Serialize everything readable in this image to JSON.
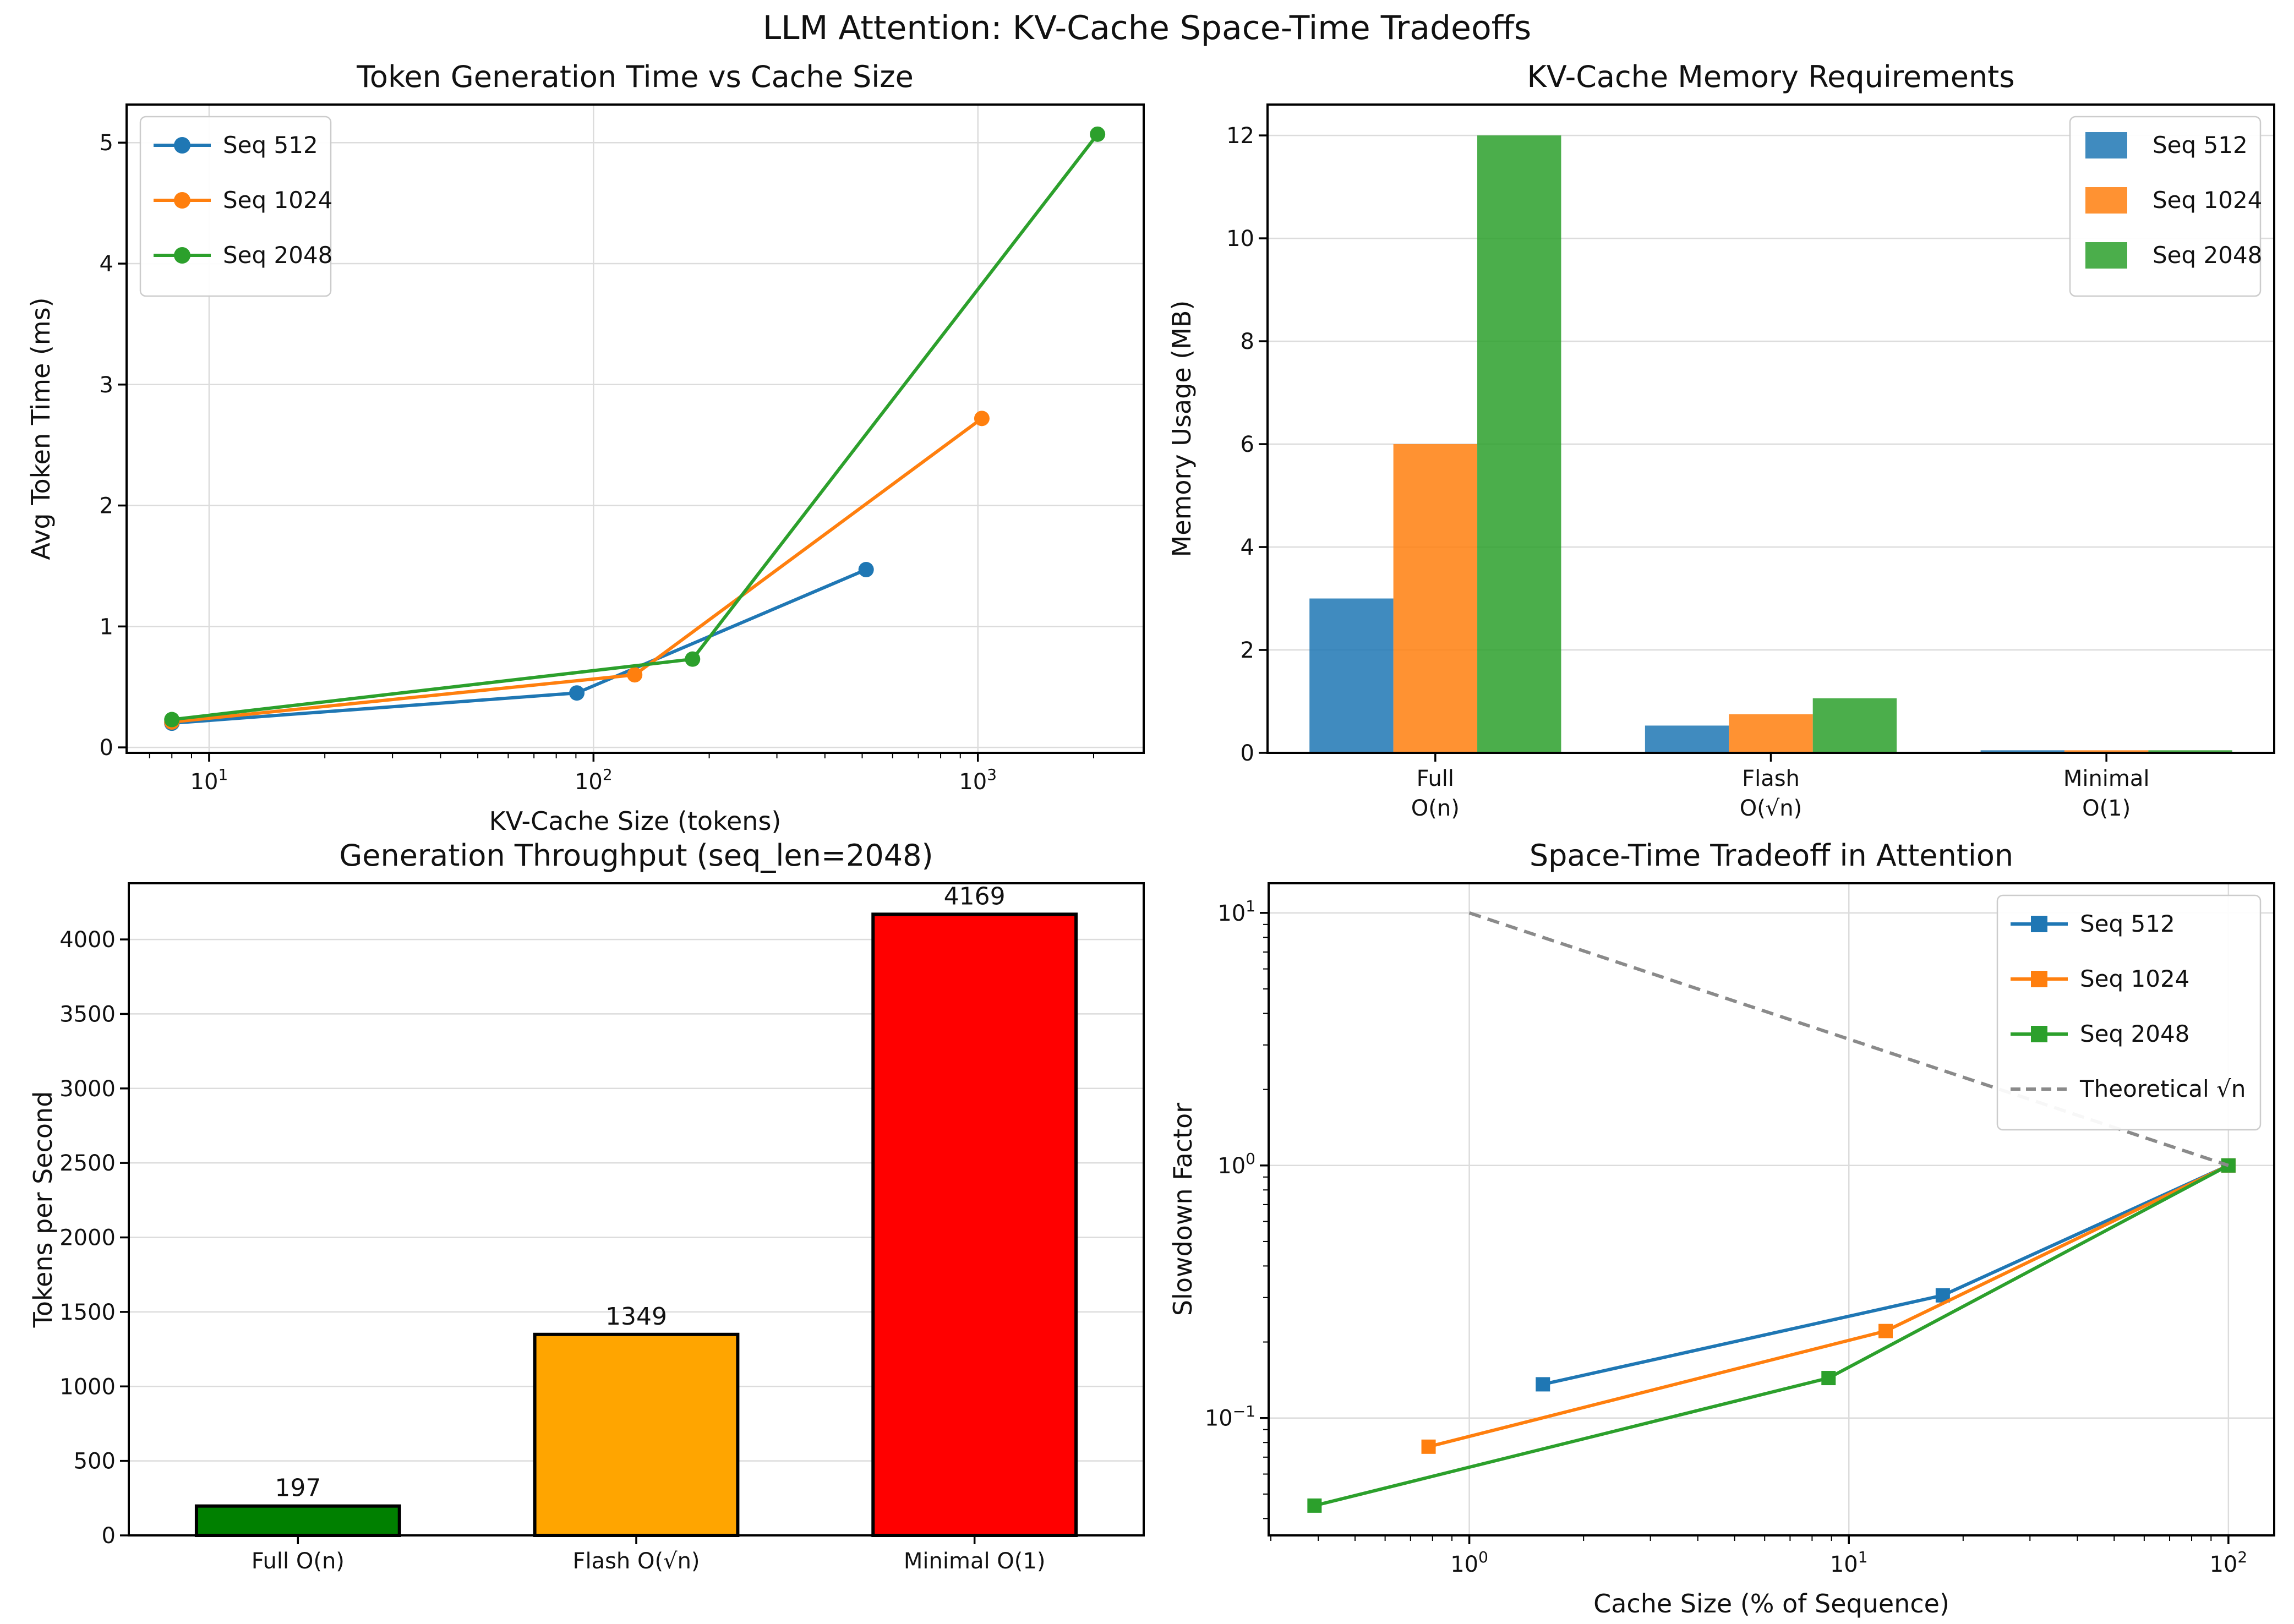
{
  "figure": {
    "title": "LLM Attention: KV-Cache Space-Time Tradeoffs",
    "background": "#ffffff",
    "text_color": "#111111",
    "grid_color": "#dcdcdc"
  },
  "chart_data": [
    {
      "name": "token-generation-time",
      "type": "line",
      "title": "Token Generation Time vs Cache Size",
      "xlabel": "KV-Cache Size (tokens)",
      "ylabel": "Avg Token Time (ms)",
      "xscale": "log",
      "yscale": "linear",
      "xlim": [
        6.1,
        2700
      ],
      "ylim": [
        -0.045,
        5.315
      ],
      "xticks": [
        10,
        100,
        1000
      ],
      "yticks": [
        0,
        1,
        2,
        3,
        4,
        5
      ],
      "grid": "xy",
      "legend_loc": "nw",
      "series": [
        {
          "name": "Seq 512",
          "color": "#1f77b4",
          "marker": "circle",
          "x": [
            8,
            90.5,
            512
          ],
          "y": [
            0.2,
            0.45,
            1.47
          ]
        },
        {
          "name": "Seq 1024",
          "color": "#ff7f0e",
          "marker": "circle",
          "x": [
            8,
            128,
            1024
          ],
          "y": [
            0.21,
            0.6,
            2.72
          ]
        },
        {
          "name": "Seq 2048",
          "color": "#2ca02c",
          "marker": "circle",
          "x": [
            8,
            181,
            2048
          ],
          "y": [
            0.23,
            0.73,
            5.07
          ]
        }
      ]
    },
    {
      "name": "kv-cache-memory",
      "type": "grouped_bar",
      "title": "KV-Cache Memory Requirements",
      "ylabel": "Memory Usage (MB)",
      "categories": [
        [
          "Full",
          "O(n)"
        ],
        [
          "Flash",
          "O(√n)"
        ],
        [
          "Minimal",
          "O(1)"
        ]
      ],
      "ylim": [
        0,
        12.6
      ],
      "yticks": [
        0,
        2,
        4,
        6,
        8,
        10,
        12
      ],
      "grid": "y",
      "legend_loc": "ne",
      "bar_opacity": 0.85,
      "series": [
        {
          "name": "Seq 512",
          "color": "#1f77b4",
          "values": [
            3.0,
            0.53,
            0.05
          ]
        },
        {
          "name": "Seq 1024",
          "color": "#ff7f0e",
          "values": [
            6.0,
            0.75,
            0.05
          ]
        },
        {
          "name": "Seq 2048",
          "color": "#2ca02c",
          "values": [
            12.0,
            1.06,
            0.05
          ]
        }
      ]
    },
    {
      "name": "generation-throughput",
      "type": "bar",
      "title": "Generation Throughput (seq_len=2048)",
      "ylabel": "Tokens per Second",
      "categories": [
        "Full O(n)",
        "Flash O(√n)",
        "Minimal O(1)"
      ],
      "values": [
        197,
        1349,
        4169
      ],
      "bar_labels": [
        "197",
        "1349",
        "4169"
      ],
      "colors": [
        "#008000",
        "#ffa500",
        "#ff0000"
      ],
      "ylim": [
        0,
        4377
      ],
      "yticks": [
        0,
        500,
        1000,
        1500,
        2000,
        2500,
        3000,
        3500,
        4000
      ],
      "grid": "y"
    },
    {
      "name": "space-time-tradeoff",
      "type": "line",
      "title": "Space-Time Tradeoff in Attention",
      "xlabel": "Cache Size (% of Sequence)",
      "ylabel": "Slowdown Factor",
      "xscale": "log",
      "yscale": "log",
      "xlim": [
        0.296,
        132
      ],
      "ylim": [
        0.0343,
        13.1
      ],
      "xticks": [
        1,
        10,
        100
      ],
      "yticks": [
        0.1,
        1,
        10
      ],
      "grid": "xy",
      "legend_loc": "ne",
      "series": [
        {
          "name": "Seq 512",
          "color": "#1f77b4",
          "marker": "square",
          "x": [
            1.5625,
            17.68,
            100
          ],
          "y": [
            0.136,
            0.306,
            1.0
          ]
        },
        {
          "name": "Seq 1024",
          "color": "#ff7f0e",
          "marker": "square",
          "x": [
            0.781,
            12.5,
            100
          ],
          "y": [
            0.077,
            0.221,
            1.0
          ]
        },
        {
          "name": "Seq 2048",
          "color": "#2ca02c",
          "marker": "square",
          "x": [
            0.391,
            8.84,
            100
          ],
          "y": [
            0.045,
            0.144,
            1.0
          ]
        },
        {
          "name": "Theoretical √n",
          "color": "#8a8a8a",
          "dash": true,
          "x": [
            1,
            100
          ],
          "y": [
            10,
            1
          ]
        }
      ]
    }
  ]
}
